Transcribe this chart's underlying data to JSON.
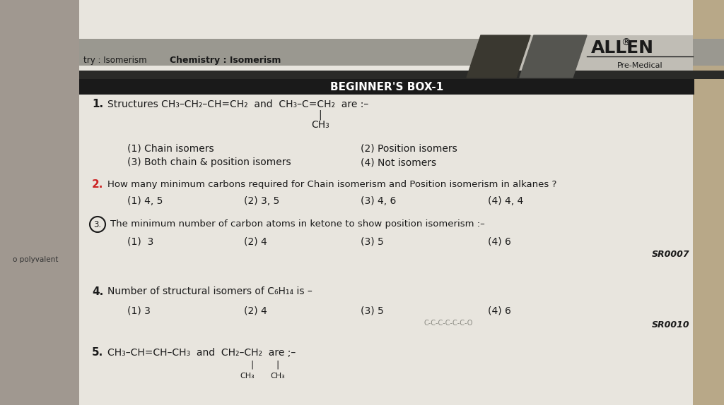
{
  "bg_color": "#c8c4bc",
  "paper_color": "#e8e5de",
  "header_bar_color": "#555550",
  "box1_bar_color": "#1a1a1a",
  "box1_text": "BEGINNER'S BOX-1",
  "header_left1": "try : Isomerism",
  "header_left2": "Chemistry : Isomerism",
  "allen_text": "ALLEN",
  "allen_reg": "®",
  "premedical_text": "Pre-Medical",
  "q1_num": "1.",
  "q1_text_a": "Structures CH",
  "q1_text_b": "₃",
  "q1_full": "Structures CH₃–CH₂–CH=CH₂  and  CH₃–C=CH₂  are :–",
  "q1_branch": "CH₃",
  "q1_opt1": "(1) Chain isomers",
  "q1_opt2": "(2) Position isomers",
  "q1_opt3": "(3) Both chain & position isomers",
  "q1_opt4": "(4) Not isomers",
  "q2_text": "How many minimum carbons required for Chain isomerism and Position isomerism in alkanes ?",
  "q2_opt1": "(1) 4, 5",
  "q2_opt2": "(2) 3, 5",
  "q2_opt3": "(3) 4, 6",
  "q2_opt4": "(4) 4, 4",
  "q3_text": "The minimum number of carbon atoms in ketone to show position isomerism :–",
  "q3_opt1": "(1)  3",
  "q3_opt2": "(2) 4",
  "q3_opt3": "(3) 5",
  "q3_opt4": "(4) 6",
  "sr0007": "SR0007",
  "q4_num": "4.",
  "q4_text": "Number of structural isomers of C₆H₁₄ is –",
  "q4_opt1": "(1) 3",
  "q4_opt2": "(2) 4",
  "q4_opt3": "(3) 5",
  "q4_opt4": "(4) 6",
  "sr0010": "SR0010",
  "q5_num": "5.",
  "q5_text": "CH₃–CH=CH–CH₃  and  CH₂–CH₂  are ;–",
  "q5_sub1": "CH₃",
  "q5_sub2": "CH₃",
  "left_strip_color": "#a09890",
  "top_area_color": "#706858",
  "allen_bg_color": "#b8b4ac",
  "allen_dark_color": "#3a3830",
  "polyvalent_text": "o polyvalent",
  "pencil_area_color": "#807060"
}
